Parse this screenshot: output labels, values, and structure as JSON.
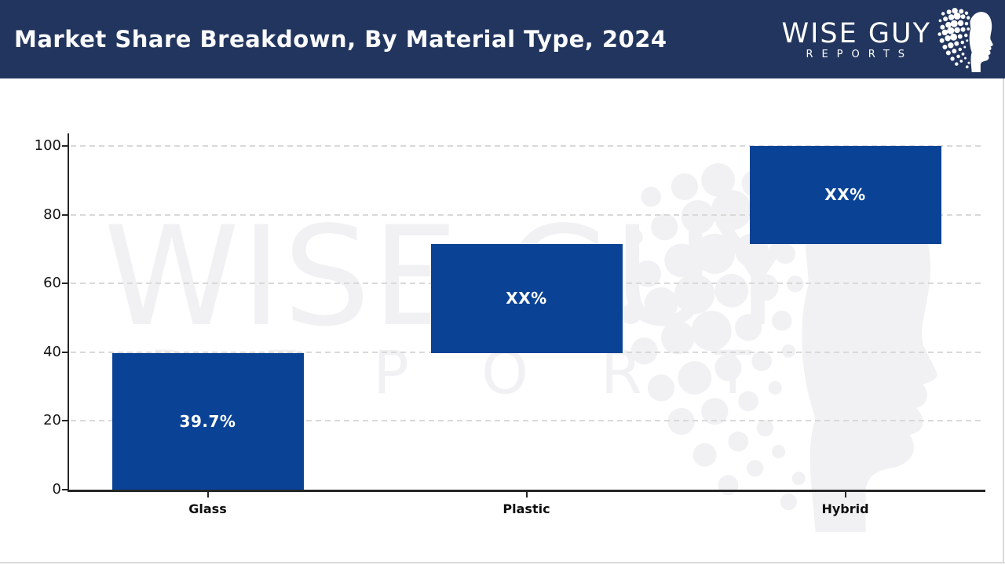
{
  "header": {
    "title": "Market Share Breakdown, By Material Type, 2024",
    "logo": {
      "line1": "WISE GUY",
      "line2": "REPORTS"
    }
  },
  "watermark": {
    "line1": "WISE GUY",
    "line2": "R E P O R T S"
  },
  "colors": {
    "header_bg": "#21355e",
    "bar_blue": "#0a4396",
    "axis": "#262626",
    "gridline": "#d9d9d9",
    "watermark_gray": "#f1f1f3",
    "bar_label": "#ffffff",
    "page_border": "#d9d9d9"
  },
  "chart_data": {
    "type": "bar",
    "subtype": "floating-cumulative-bars",
    "title": "Market Share Breakdown, By Material Type, 2024",
    "categories": [
      "Glass",
      "Plastic",
      "Hybrid"
    ],
    "bars": [
      {
        "category": "Glass",
        "from": 0,
        "to": 39.7,
        "label": "39.7%"
      },
      {
        "category": "Plastic",
        "from": 39.7,
        "to": 71.5,
        "label": "XX%"
      },
      {
        "category": "Hybrid",
        "from": 71.5,
        "to": 100,
        "label": "XX%"
      }
    ],
    "yticks": [
      0,
      20,
      40,
      60,
      80,
      100
    ],
    "ylim": [
      0,
      103.6
    ],
    "xlabel": "",
    "ylabel": "",
    "grid": "dashed-horizontal",
    "legend": "none"
  }
}
